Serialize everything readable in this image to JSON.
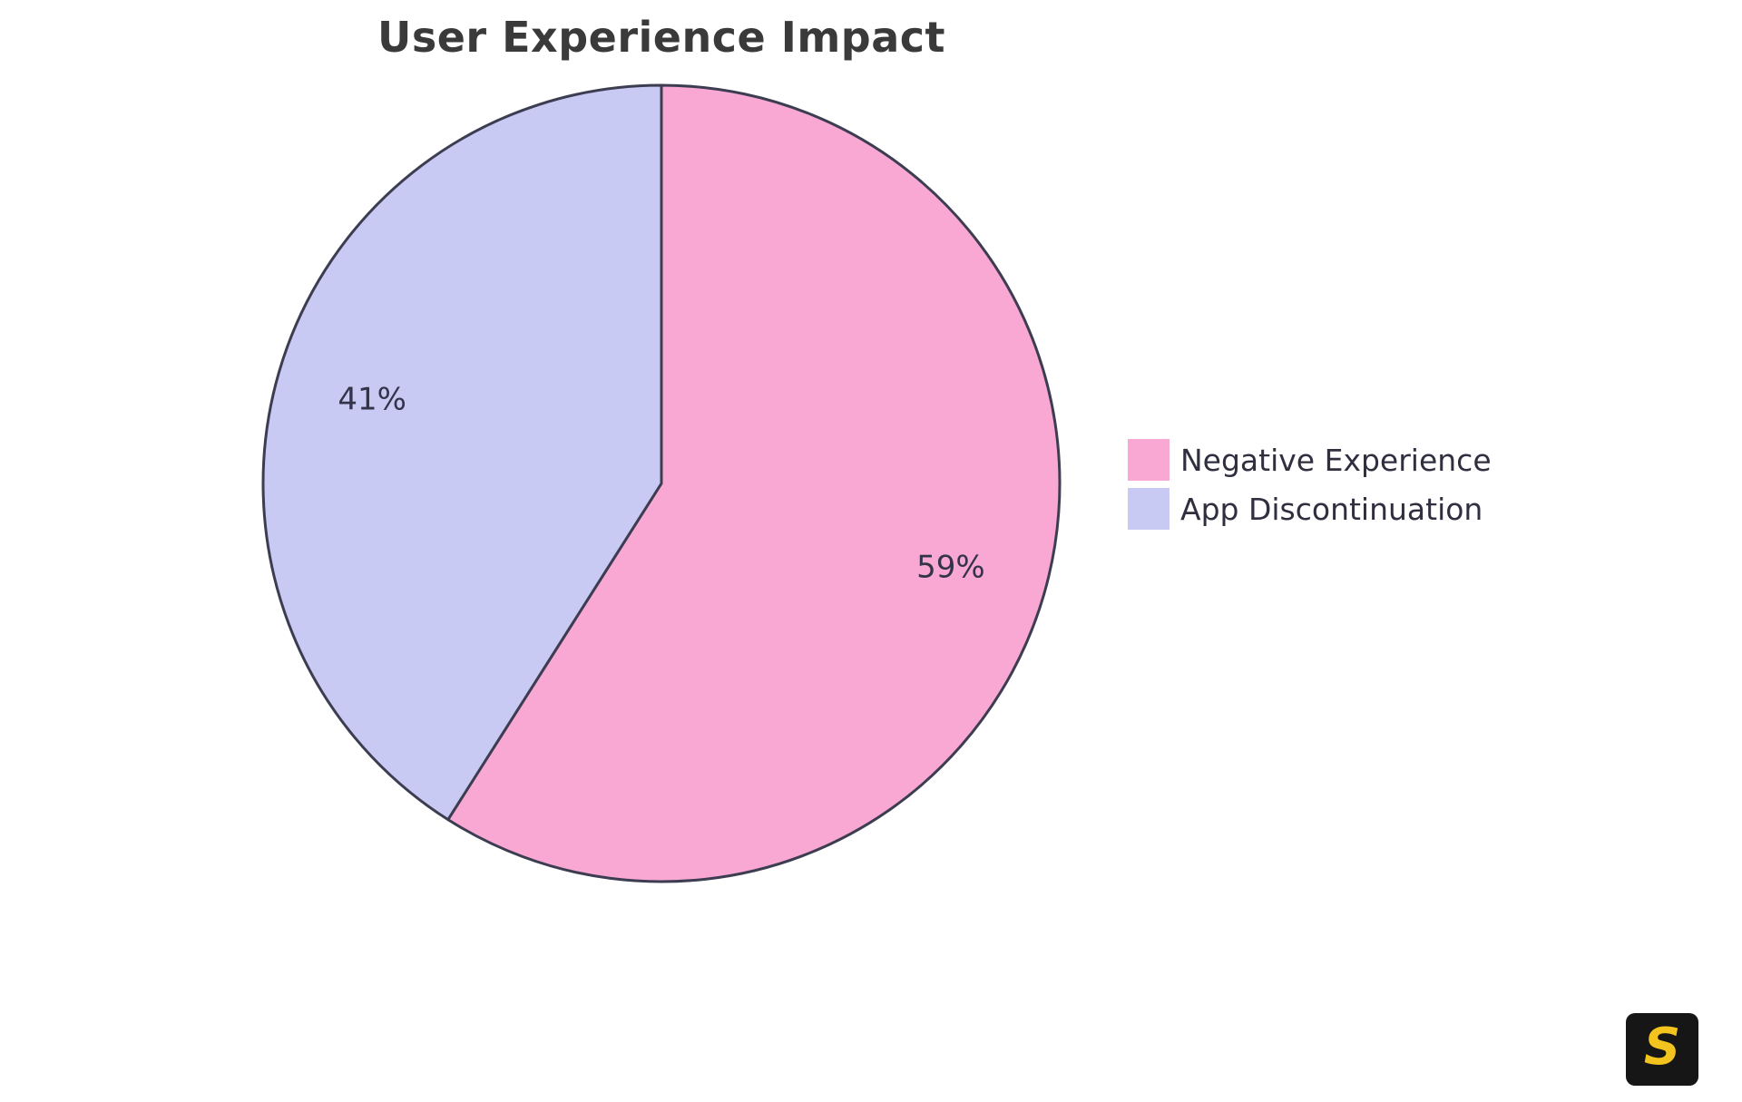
{
  "chart_data": {
    "type": "pie",
    "title": "User Experience Impact",
    "slices": [
      {
        "label": "Negative Experience",
        "value": 59,
        "pct_label": "59%",
        "color": "#f9a8d4"
      },
      {
        "label": "App Discontinuation",
        "value": 41,
        "pct_label": "41%",
        "color": "#c9caf4"
      }
    ],
    "start_angle_deg": -90,
    "direction": "clockwise",
    "stroke_color": "#3d3d52",
    "label_color": "#33334a",
    "legend_position": "right"
  },
  "logo": {
    "text": "S",
    "bg": "#161616",
    "fg": "#f2c41d"
  }
}
